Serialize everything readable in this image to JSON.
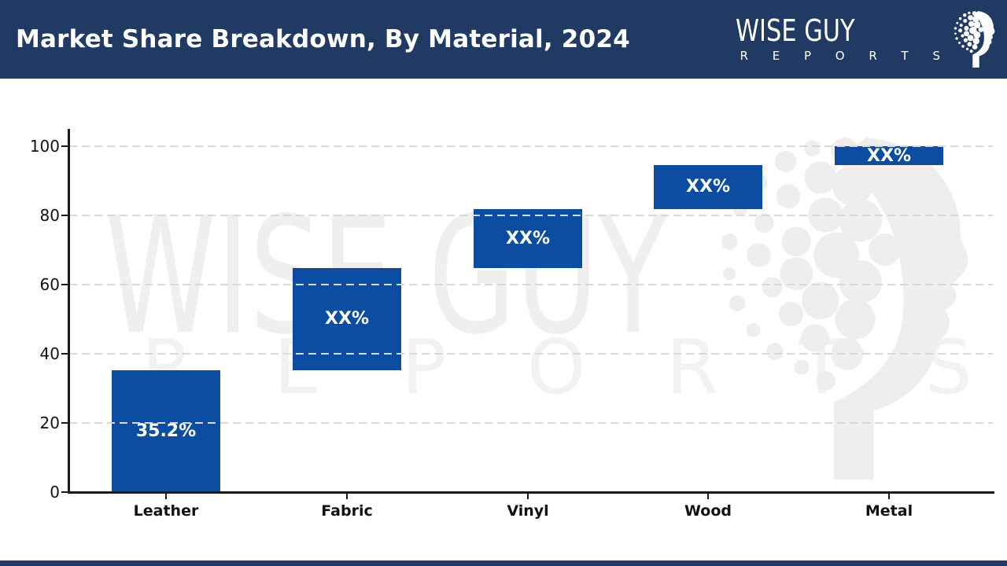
{
  "header": {
    "title": "Market Share Breakdown, By Material, 2024",
    "logo": {
      "wordmark": "WISE GUY",
      "sub": "R E P O R T S"
    }
  },
  "watermark": {
    "wordmark": "WISE GUY",
    "sub": "R E P O R T S"
  },
  "chart_data": {
    "type": "bar",
    "subtype": "waterfall",
    "title": "Market Share Breakdown, By Material, 2024",
    "categories": [
      "Leather",
      "Fabric",
      "Vinyl",
      "Wood",
      "Metal"
    ],
    "values": [
      35.2,
      29.6,
      17.1,
      12.6,
      5.5
    ],
    "cumulative_ranges": [
      [
        0,
        35.2
      ],
      [
        35.2,
        64.8
      ],
      [
        64.8,
        81.9
      ],
      [
        81.9,
        94.5
      ],
      [
        94.5,
        100
      ]
    ],
    "bar_labels": [
      "35.2%",
      "XX%",
      "XX%",
      "XX%",
      "XX%"
    ],
    "xlabel": "",
    "ylabel": "",
    "y_ticks": [
      0,
      20,
      40,
      60,
      80,
      100
    ],
    "ylim": [
      0,
      100
    ],
    "grid": "horizontal-dashed",
    "legend": "none",
    "bar_color": "#0d4da1",
    "bar_label_color": "#ffffff",
    "axis_color": "#1a1a1a",
    "gridline_color": "#d9d9d9"
  },
  "colors": {
    "header_bg": "#213a63",
    "footer_bar": "#213a63",
    "background": "#ffffff",
    "watermark": "#efefef"
  }
}
